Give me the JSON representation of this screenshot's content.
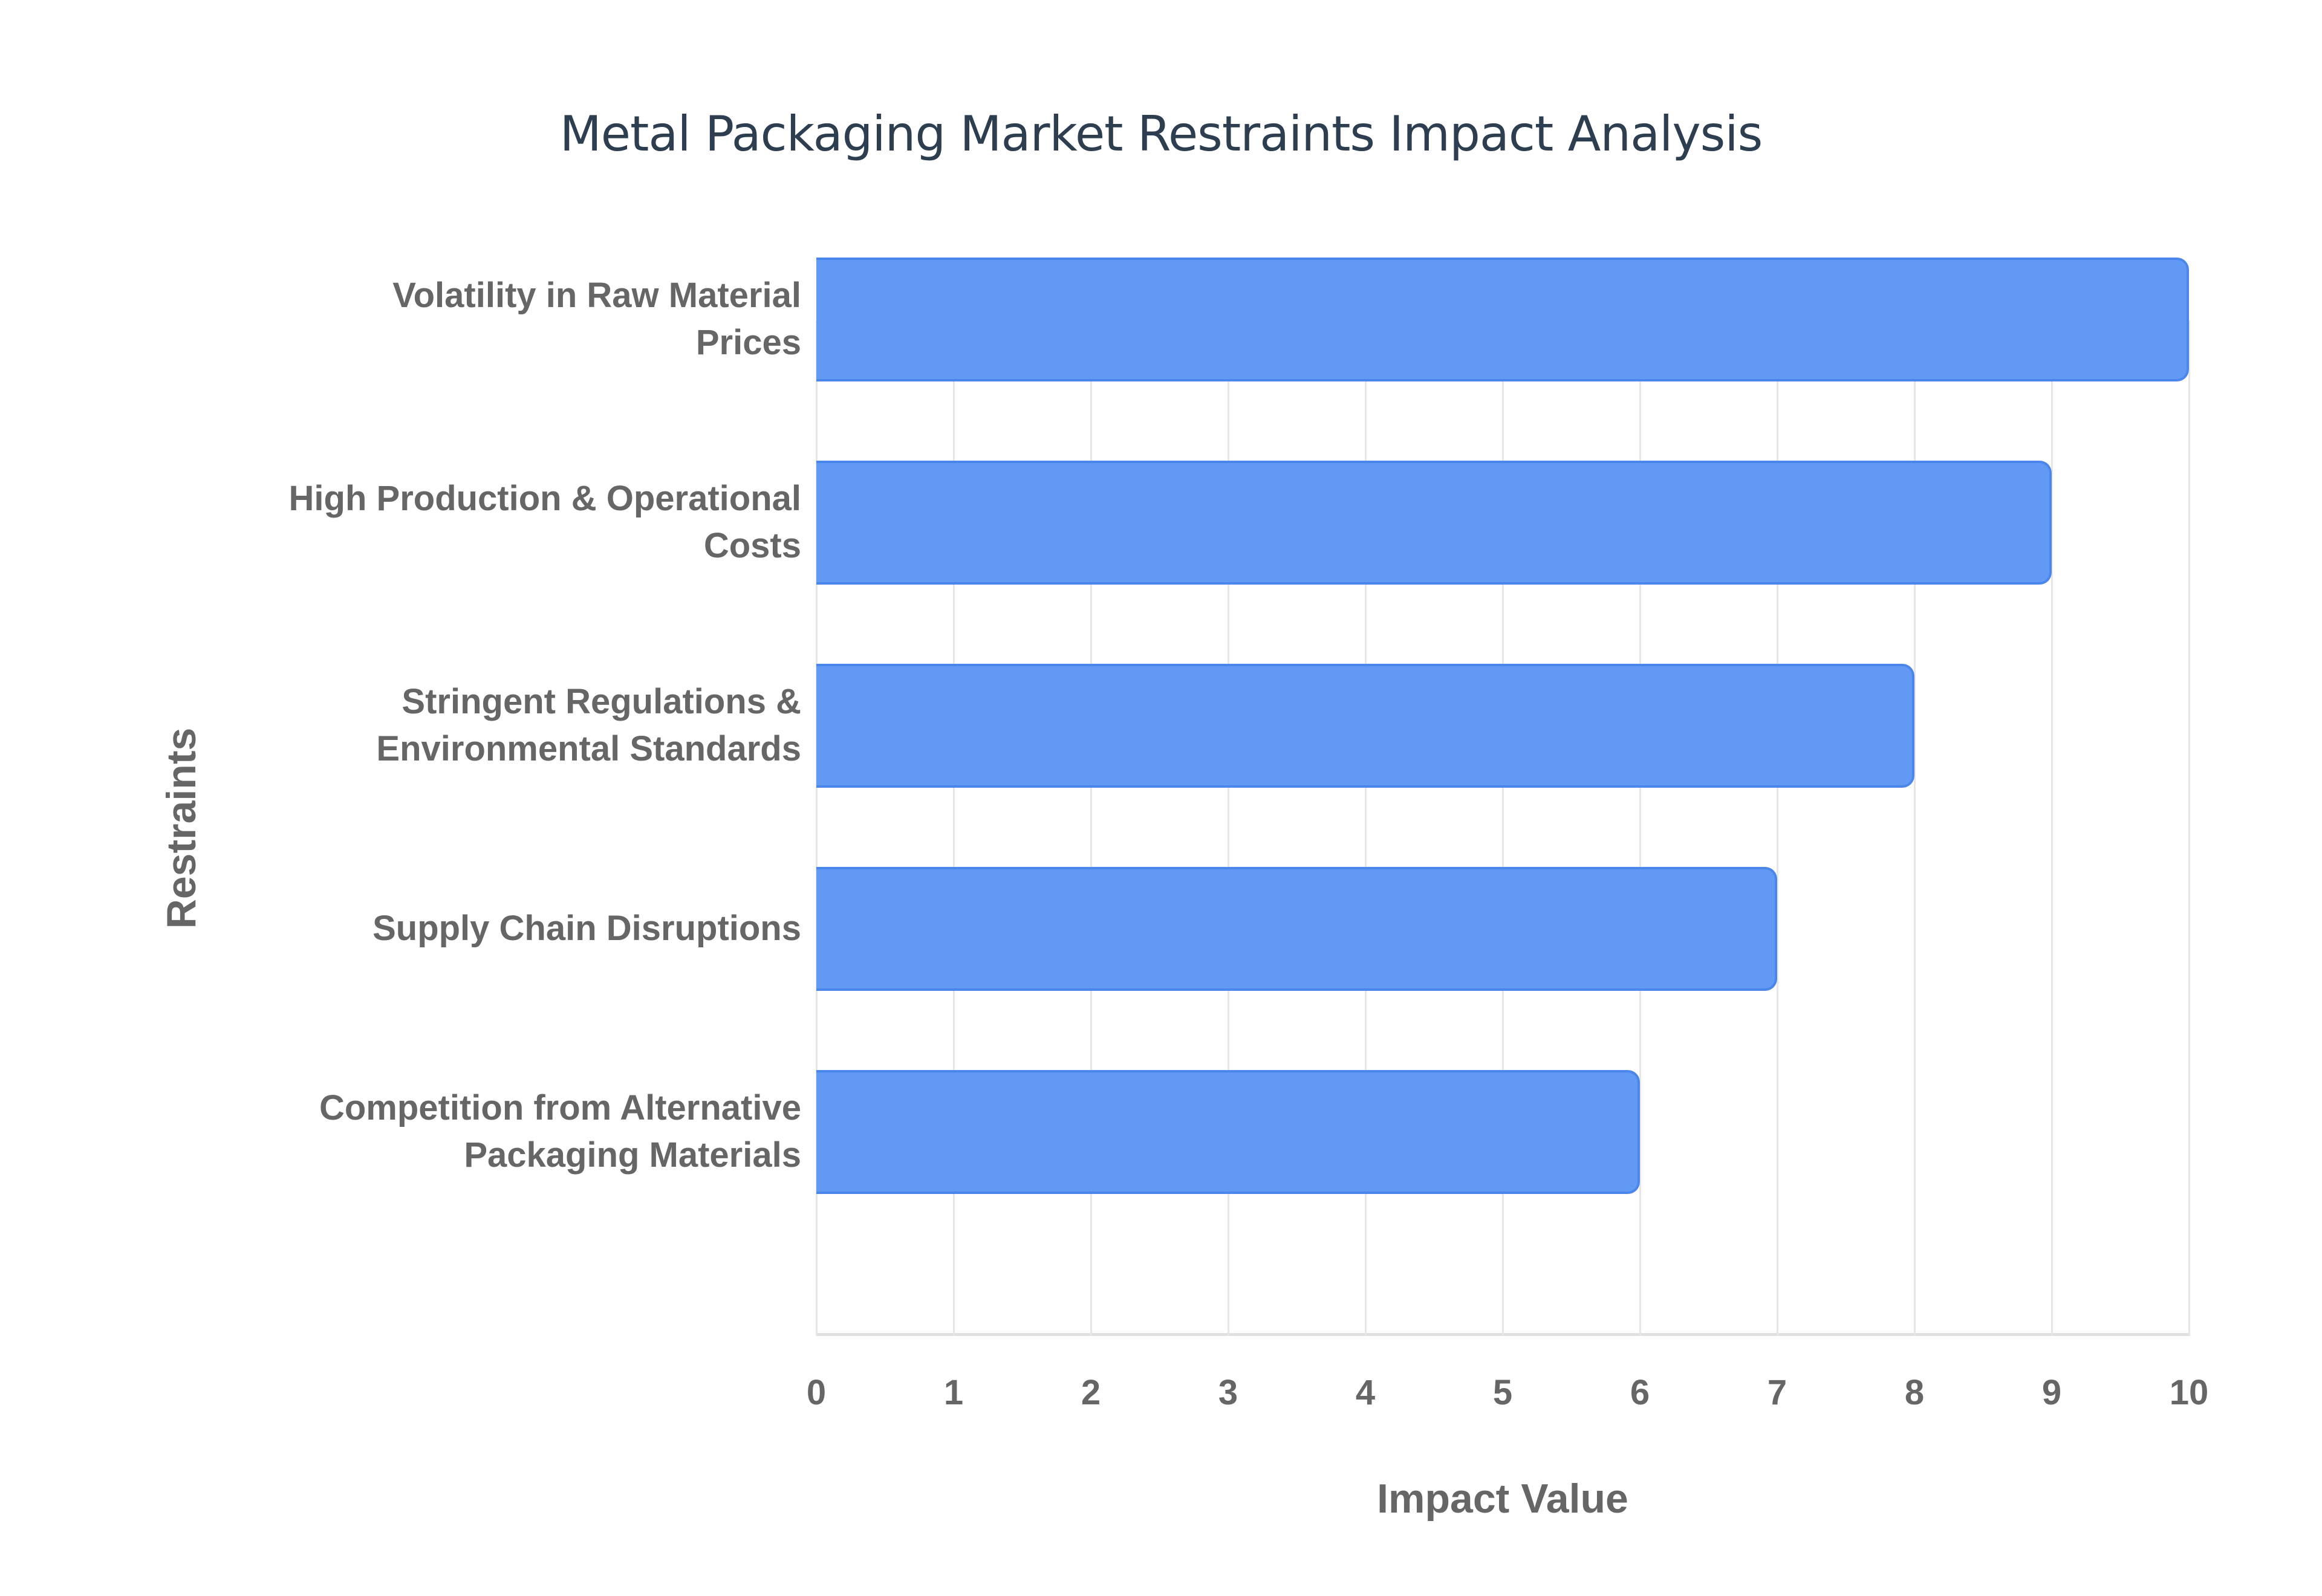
{
  "title": "Metal Packaging Market Restraints Impact Analysis",
  "axes": {
    "xlabel": "Impact Value",
    "ylabel": "Restraints",
    "xticks": [
      "0",
      "1",
      "2",
      "3",
      "4",
      "5",
      "6",
      "7",
      "8",
      "9",
      "10"
    ]
  },
  "colors": {
    "bar_fill": "#6199f4",
    "bar_border": "#4a86ec",
    "title": "#2c3e50",
    "axis_text": "#666666",
    "grid": "#e6e6e6"
  },
  "chart_data": {
    "type": "bar",
    "orientation": "horizontal",
    "title": "Metal Packaging Market Restraints Impact Analysis",
    "xlabel": "Impact Value",
    "ylabel": "Restraints",
    "xlim": [
      0,
      10
    ],
    "grid": true,
    "legend": null,
    "categories": [
      "Volatility in Raw Material Prices",
      "High Production & Operational Costs",
      "Stringent Regulations & Environmental Standards",
      "Supply Chain Disruptions",
      "Competition from Alternative Packaging Materials"
    ],
    "values": [
      10,
      9,
      8,
      7,
      6
    ]
  },
  "labels": [
    {
      "line1": "Volatility in Raw Material",
      "line2": "Prices"
    },
    {
      "line1": "High Production & Operational",
      "line2": "Costs"
    },
    {
      "line1": "Stringent Regulations &",
      "line2": "Environmental Standards"
    },
    {
      "line1": "Supply Chain Disruptions",
      "line2": ""
    },
    {
      "line1": "Competition from Alternative",
      "line2": "Packaging Materials"
    }
  ]
}
